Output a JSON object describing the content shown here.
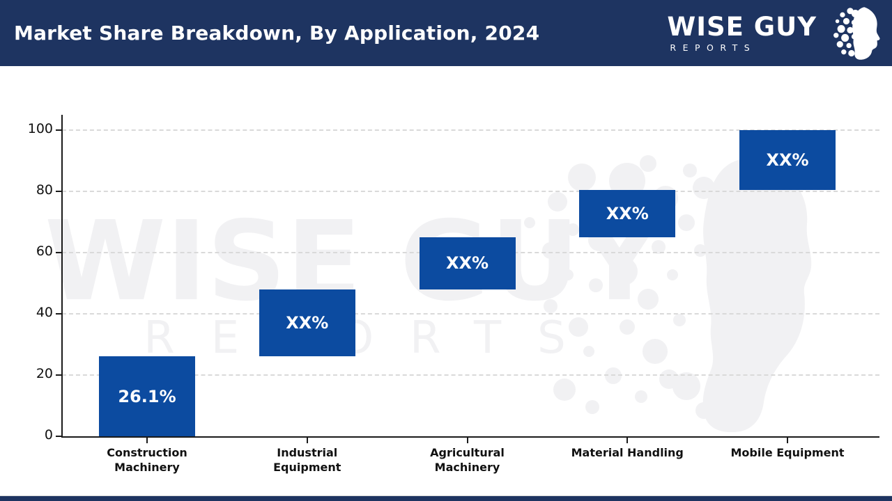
{
  "header": {
    "title": "Market Share Breakdown, By Application, 2024",
    "logo": {
      "line1": "WISE GUY",
      "line2": "REPORTS"
    }
  },
  "watermark": {
    "line1": "WISE GUY",
    "line2": "REPORTS"
  },
  "colors": {
    "header_bg": "#1e3461",
    "footer_bg": "#1e3461",
    "bar_fill": "#0c4ba0",
    "gridline": "#d9d9d9",
    "watermark": "#f1f1f3",
    "label_text": "#ffffff",
    "axis_text": "#111111"
  },
  "chart_data": {
    "type": "bar",
    "subtype": "waterfall-floating-bars",
    "title": "Market Share Breakdown, By Application, 2024",
    "xlabel": "",
    "ylabel": "",
    "ylim": [
      0,
      100
    ],
    "yticks": [
      0,
      20,
      40,
      60,
      80,
      100
    ],
    "grid": "dashed-horizontal",
    "legend": "none",
    "categories": [
      "Construction Machinery",
      "Industrial Equipment",
      "Agricultural Machinery",
      "Material Handling",
      "Mobile Equipment"
    ],
    "category_label_lines": [
      [
        "Construction",
        "Machinery"
      ],
      [
        "Industrial",
        "Equipment"
      ],
      [
        "Agricultural",
        "Machinery"
      ],
      [
        "Material Handling"
      ],
      [
        "Mobile Equipment"
      ]
    ],
    "bars": [
      {
        "category": "Construction Machinery",
        "from": 0,
        "to": 26.1,
        "label": "26.1%"
      },
      {
        "category": "Industrial Equipment",
        "from": 26.1,
        "to": 48,
        "label": "XX%"
      },
      {
        "category": "Agricultural Machinery",
        "from": 48,
        "to": 65,
        "label": "XX%"
      },
      {
        "category": "Material Handling",
        "from": 65,
        "to": 80.5,
        "label": "XX%"
      },
      {
        "category": "Mobile Equipment",
        "from": 80.5,
        "to": 100,
        "label": "XX%"
      }
    ]
  }
}
